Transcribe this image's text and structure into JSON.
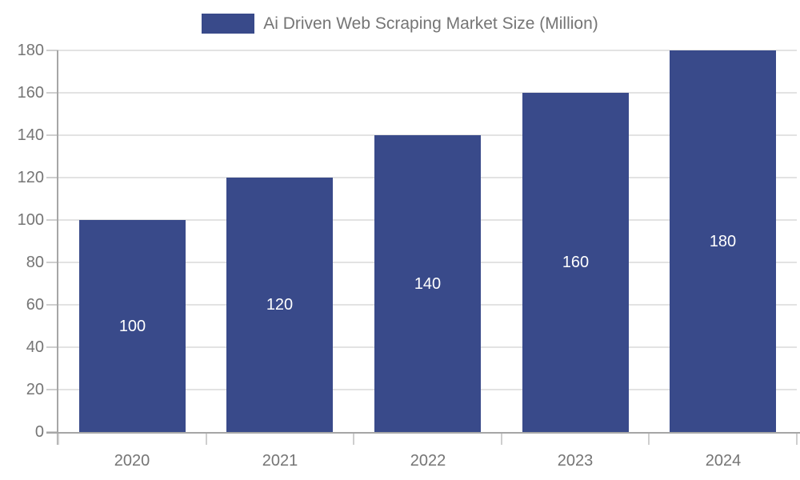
{
  "chart_data": {
    "type": "bar",
    "title": "Ai Driven Web Scraping Market Size (Million)",
    "legend": {
      "label": "Ai Driven Web Scraping Market Size (Million)",
      "position": "top"
    },
    "categories": [
      "2020",
      "2021",
      "2022",
      "2023",
      "2024"
    ],
    "values": [
      100,
      120,
      140,
      160,
      180
    ],
    "series": [
      {
        "name": "Ai Driven Web Scraping Market Size (Million)",
        "values": [
          100,
          120,
          140,
          160,
          180
        ]
      }
    ],
    "xlabel": "",
    "ylabel": "",
    "ylim": [
      0,
      180
    ],
    "y_ticks": [
      0,
      20,
      40,
      60,
      80,
      100,
      120,
      140,
      160,
      180
    ],
    "grid": true,
    "value_labels": [
      "100",
      "120",
      "140",
      "160",
      "180"
    ],
    "colors": {
      "bar": "#394A8A",
      "value_label": "#FFFFFF",
      "text": "#757575",
      "axis": "#A6A6A6",
      "grid": "#E3E3E3",
      "tick": "#CFCFCF",
      "background": "#FFFFFF"
    }
  }
}
